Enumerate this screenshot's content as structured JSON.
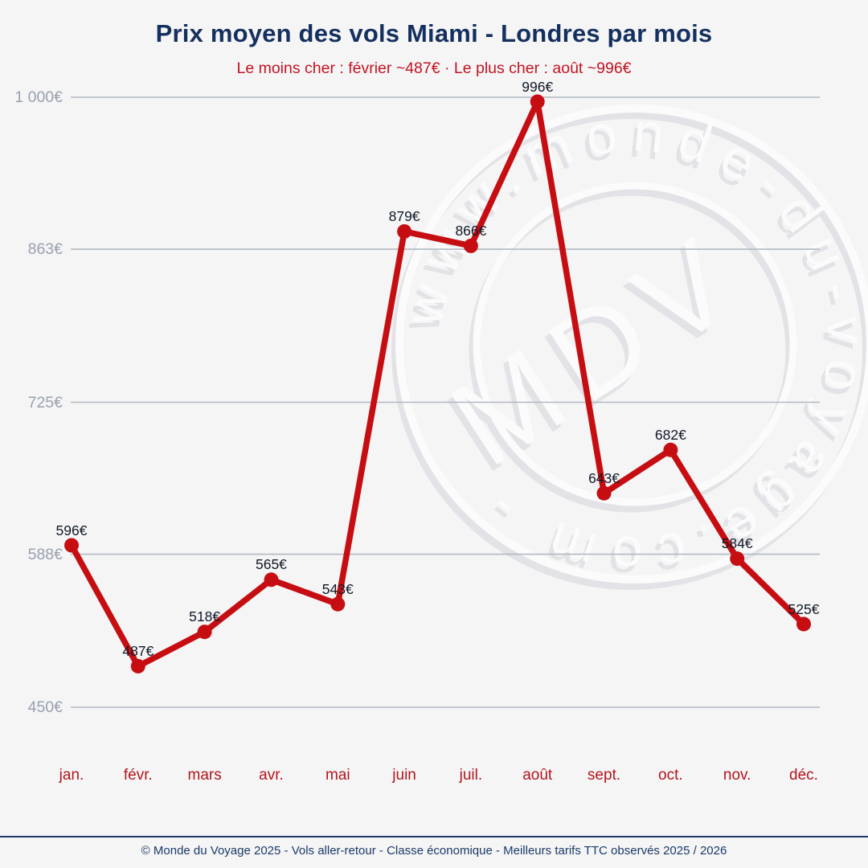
{
  "title": "Prix moyen des vols Miami - Londres par mois",
  "subtitle": "Le moins cher : février ~487€ · Le plus cher : août ~996€",
  "footer": {
    "text": "© Monde du Voyage 2025 - Vols aller-retour - Classe économique - Meilleurs tarifs TTC observés 2025 / 2026"
  },
  "watermark": {
    "url_text": "www.monde-du-voyage.com - ",
    "initials": "MDV"
  },
  "chart_data": {
    "type": "line",
    "title": "Prix moyen des vols Miami - Londres par mois",
    "subtitle": "Le moins cher : février ~487€ · Le plus cher : août ~996€",
    "categories": [
      "jan.",
      "févr.",
      "mars",
      "avr.",
      "mai",
      "juin",
      "juil.",
      "août",
      "sept.",
      "oct.",
      "nov.",
      "déc."
    ],
    "values": [
      596,
      487,
      518,
      565,
      543,
      879,
      866,
      996,
      643,
      682,
      584,
      525
    ],
    "unit": "€",
    "xlabel": "",
    "ylabel": "",
    "ylim": [
      450,
      1000
    ],
    "yticks": [
      {
        "value": 1000,
        "label": "1 000€"
      },
      {
        "value": 863,
        "label": "863€"
      },
      {
        "value": 725,
        "label": "725€"
      },
      {
        "value": 588,
        "label": "588€"
      },
      {
        "value": 450,
        "label": "450€"
      }
    ],
    "grid": true,
    "legend": false
  },
  "colors": {
    "background": "#f5f5f6",
    "title": "#14305e",
    "subtitle": "#c41420",
    "line": "#c60e12",
    "point": "#c60e12",
    "grid": "#b2b8c2",
    "y_tick": "#99a1ae",
    "x_tick": "#b2151c",
    "point_label": "#101826",
    "footer": "#1b3a67",
    "watermark_shadow": "#e3e3e7",
    "watermark_light": "#fbfbfc"
  }
}
